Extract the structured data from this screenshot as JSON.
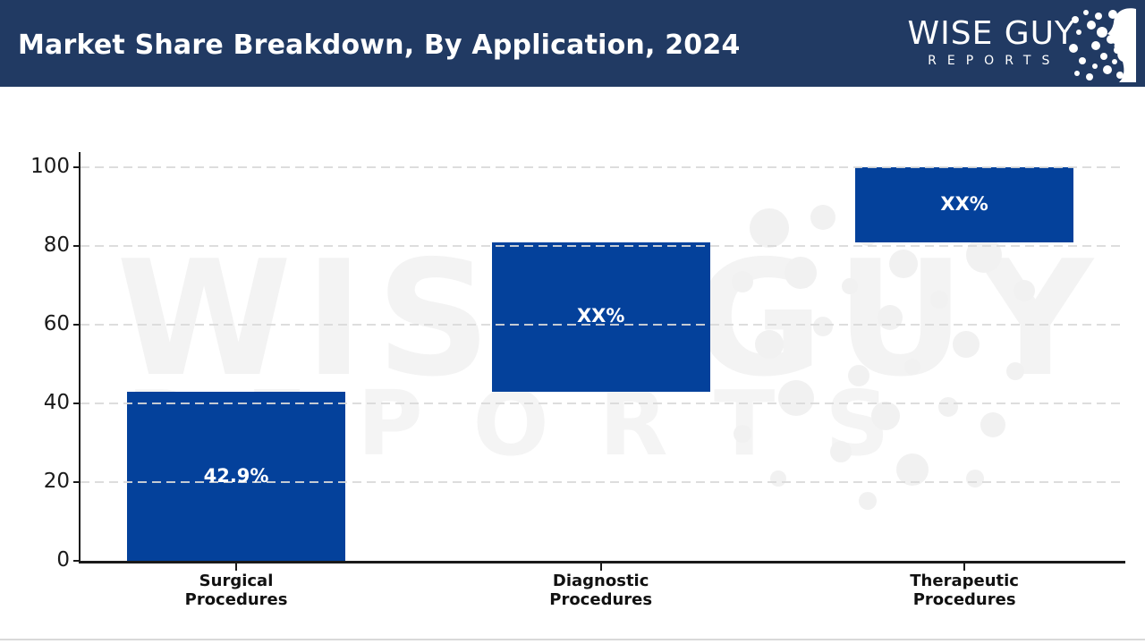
{
  "header": {
    "title": "Market Share Breakdown, By Application, 2024",
    "logo": {
      "brand_line1": "WISE GUY",
      "brand_line2": "REPORTS"
    }
  },
  "watermark": {
    "line1": "WISE GUY",
    "line2": "REPORTS"
  },
  "chart_data": {
    "type": "bar",
    "subtype": "floating-waterfall",
    "title": "Market Share Breakdown, By Application, 2024",
    "categories": [
      [
        "Surgical",
        "Procedures"
      ],
      [
        "Diagnostic",
        "Procedures"
      ],
      [
        "Therapeutic",
        "Procedures"
      ]
    ],
    "segments": [
      {
        "category": "Surgical Procedures",
        "start": 0,
        "end": 42.9,
        "label": "42.9%"
      },
      {
        "category": "Diagnostic Procedures",
        "start": 42.9,
        "end": 81.0,
        "label": "XX%"
      },
      {
        "category": "Therapeutic Procedures",
        "start": 81.0,
        "end": 100.0,
        "label": "XX%"
      }
    ],
    "yticks": [
      0,
      20,
      40,
      60,
      80,
      100
    ],
    "ylim": [
      0,
      104
    ],
    "grid": "dashed-horizontal",
    "legend": "none",
    "bar_color": "#04419b",
    "bar_label_color": "#ffffff",
    "axis_color": "#1a1a1a",
    "grid_color": "#d9d9d9"
  },
  "colors": {
    "header_bg": "#213a63",
    "watermark": "#f3f3f3",
    "footer_line": "#d9d9d9"
  }
}
